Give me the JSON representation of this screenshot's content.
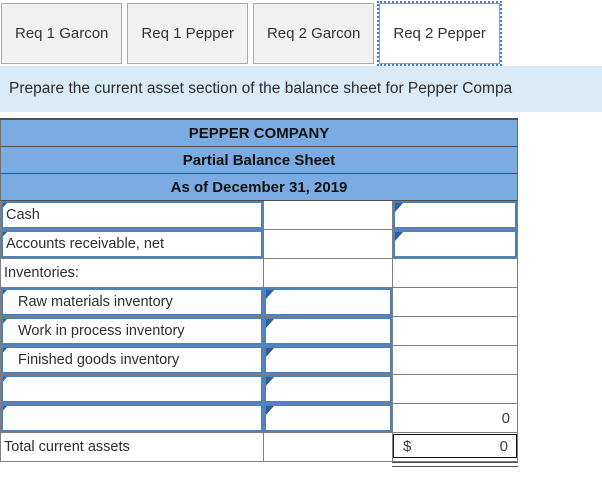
{
  "tabs": [
    {
      "label": "Req 1 Garcon",
      "selected": false
    },
    {
      "label": "Req 1 Pepper",
      "selected": false
    },
    {
      "label": "Req 2 Garcon",
      "selected": false
    },
    {
      "label": "Req 2 Pepper",
      "selected": true
    }
  ],
  "instruction": "Prepare the current asset section of the balance sheet for Pepper Compa",
  "statement": {
    "title": "PEPPER COMPANY",
    "subtitle": "Partial Balance Sheet",
    "date_line": "As of December 31, 2019",
    "rows": [
      {
        "label": "Cash",
        "indent": false
      },
      {
        "label": "Accounts receivable, net",
        "indent": false
      },
      {
        "label": "Inventories:",
        "indent": false
      },
      {
        "label": "Raw materials inventory",
        "indent": true
      },
      {
        "label": "Work in process inventory",
        "indent": true
      },
      {
        "label": "Finished goods inventory",
        "indent": true
      },
      {
        "label": "",
        "indent": false
      },
      {
        "label": "",
        "indent": false,
        "amount": "0"
      },
      {
        "label": "Total current assets",
        "indent": false,
        "currency": "$",
        "amount": "0"
      }
    ]
  },
  "colors": {
    "header_blue": "#7aabe2",
    "input_border_blue": "#4e80be",
    "flag_blue": "#2b5f9e",
    "banner_bg": "#d9eaf8",
    "selected_tab_outline": "#3e7ed6",
    "gridline_gray": "#7f7f7f"
  }
}
